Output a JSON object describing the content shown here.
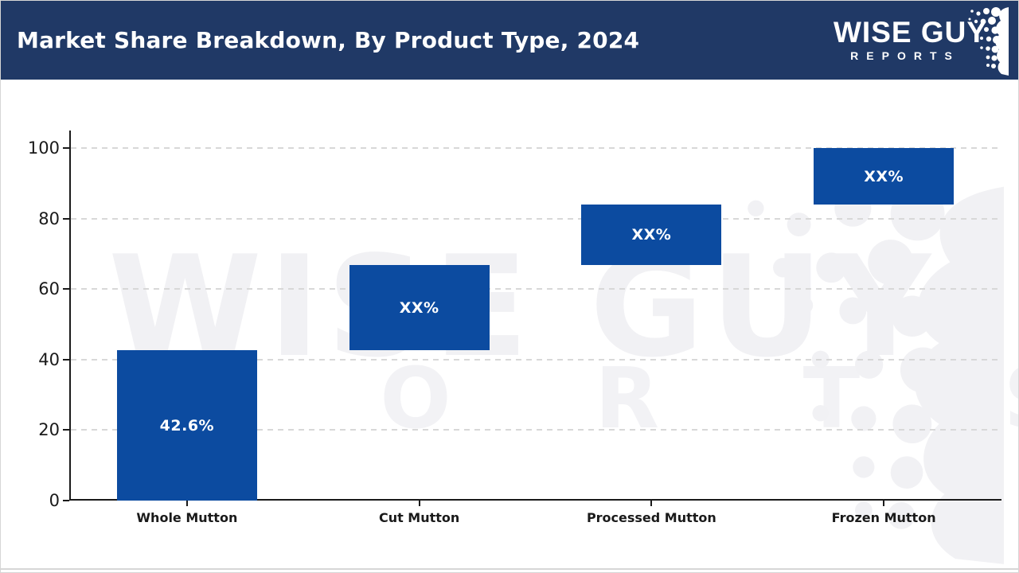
{
  "header": {
    "title": "Market Share Breakdown, By Product Type, 2024",
    "logo": {
      "line1": "WISE GUY",
      "line2": "REPORTS"
    }
  },
  "watermark": {
    "line1": "WISE GUY",
    "line2": "R  O R T S",
    "line2_full": "REPORTS"
  },
  "colors": {
    "header_bg": "#203966",
    "bar_fill": "#0c4ba0",
    "bar_label_text": "#ffffff",
    "grid_line": "#d8d8d8",
    "axis_line": "#1a1a1a",
    "tick_text": "#1a1a1a",
    "title_text": "#ffffff",
    "watermark_tint": "#f1f1f4"
  },
  "chart_data": {
    "type": "bar",
    "subtype": "waterfall",
    "title": "Market Share Breakdown, By Product Type, 2024",
    "xlabel": "",
    "ylabel": "",
    "categories": [
      "Whole Mutton",
      "Cut Mutton",
      "Processed Mutton",
      "Frozen Mutton"
    ],
    "segments": [
      {
        "category": "Whole Mutton",
        "start": 0,
        "end": 42.6,
        "label": "42.6%"
      },
      {
        "category": "Cut Mutton",
        "start": 42.6,
        "end": 66.8,
        "label": "XX%"
      },
      {
        "category": "Processed Mutton",
        "start": 66.8,
        "end": 83.9,
        "label": "XX%"
      },
      {
        "category": "Frozen Mutton",
        "start": 84.0,
        "end": 100,
        "label": "XX%"
      }
    ],
    "yticks": [
      0,
      20,
      40,
      60,
      80,
      100
    ],
    "ylim": [
      0,
      105
    ],
    "grid": "dashed-horizontal",
    "legend": "none",
    "bar_labels_visible": true
  }
}
